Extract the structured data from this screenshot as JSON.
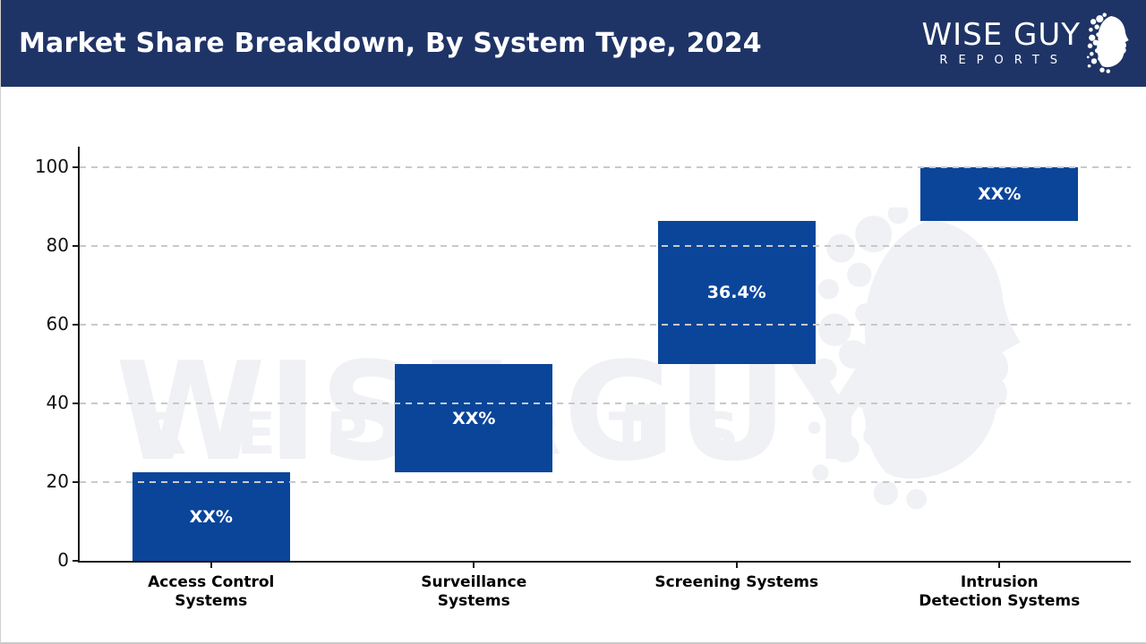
{
  "header": {
    "title": "Market Share Breakdown, By System Type, 2024",
    "background": "#1f3466",
    "logo": {
      "wordmark": "WISE GUY",
      "sub": "REPORTS"
    }
  },
  "watermark": {
    "wordmark": "WISE GUY",
    "sub": "REPORTS"
  },
  "chart_data": {
    "type": "bar",
    "subtype": "waterfall",
    "title": "Market Share Breakdown, By System Type, 2024",
    "categories": [
      "Access Control Systems",
      "Surveillance Systems",
      "Screening Systems",
      "Intrusion Detection Systems"
    ],
    "category_lines": [
      [
        "Access Control",
        "Systems"
      ],
      [
        "Surveillance",
        "Systems"
      ],
      [
        "Screening Systems"
      ],
      [
        "Intrusion",
        "Detection Systems"
      ]
    ],
    "bars": [
      {
        "label": "XX%",
        "start": 0,
        "end": 22.5
      },
      {
        "label": "XX%",
        "start": 22.5,
        "end": 50
      },
      {
        "label": "36.4%",
        "start": 50,
        "end": 86.4
      },
      {
        "label": "XX%",
        "start": 86.4,
        "end": 100
      }
    ],
    "yticks": [
      0,
      20,
      40,
      60,
      80,
      100
    ],
    "ylim": [
      0,
      105
    ],
    "xlabel": "",
    "ylabel": "",
    "grid": true,
    "legend": false,
    "bar_color": "#0a459a",
    "bar_label_color": "#ffffff",
    "gridline_color": "#c9c9c9",
    "axis_color": "#1a1a1a"
  }
}
